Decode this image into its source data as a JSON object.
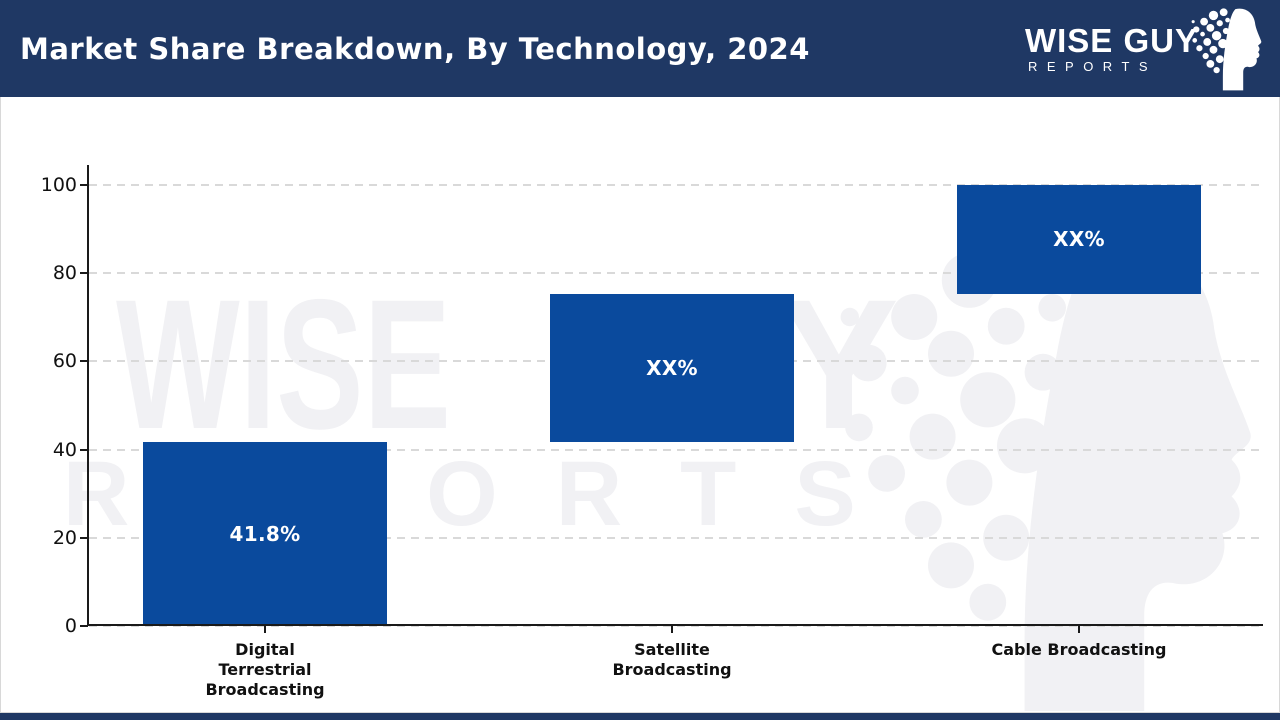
{
  "header": {
    "title": "Market Share Breakdown, By Technology, 2024",
    "logo": {
      "primary": "WISE GUY",
      "secondary": "REPORTS"
    }
  },
  "chart_data": {
    "type": "bar",
    "variant": "waterfall",
    "title": "Market Share Breakdown, By Technology, 2024",
    "unit": "%",
    "categories": [
      "Digital Terrestrial Broadcasting",
      "Satellite Broadcasting",
      "Cable Broadcasting"
    ],
    "category_label_lines": [
      [
        "Digital",
        "Terrestrial",
        "Broadcasting"
      ],
      [
        "Satellite",
        "Broadcasting"
      ],
      [
        "Cable Broadcasting"
      ]
    ],
    "segments": [
      {
        "category": "Digital Terrestrial Broadcasting",
        "start": 0,
        "end": 41.8,
        "label": "41.8%"
      },
      {
        "category": "Satellite Broadcasting",
        "start": 41.8,
        "end": 75.2,
        "label": "XX%"
      },
      {
        "category": "Cable Broadcasting",
        "start": 75.2,
        "end": 100,
        "label": "XX%"
      }
    ],
    "yticks": [
      0,
      20,
      40,
      60,
      80,
      100
    ],
    "ylim": [
      0,
      103.8
    ],
    "grid": "horizontal-dashed",
    "legend": "none",
    "colors": {
      "bar": "#0a4a9d",
      "grid": "#d9d9d9",
      "axis": "#1a1a1a",
      "value_label": "#ffffff",
      "header_bg": "#1f3864",
      "footer_bg": "#1f3864",
      "frame_border": "#d8d8d8",
      "watermark": "#f1f1f4"
    }
  },
  "watermark": {
    "word1": "WISE",
    "word2": "G",
    "word3": "Y",
    "line2": "REPORTS"
  }
}
